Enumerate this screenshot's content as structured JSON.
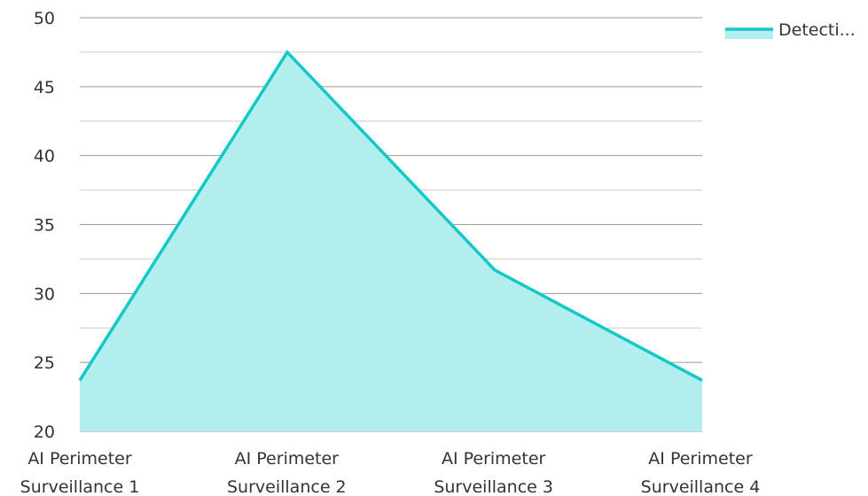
{
  "chart_data": {
    "type": "area",
    "categories": [
      [
        "AI Perimeter",
        "Surveillance 1"
      ],
      [
        "AI Perimeter",
        "Surveillance 2"
      ],
      [
        "AI Perimeter",
        "Surveillance 3"
      ],
      [
        "AI Perimeter",
        "Surveillance 4"
      ]
    ],
    "series": [
      {
        "name": "Detecti...",
        "values": [
          23.7,
          47.5,
          31.7,
          23.7
        ]
      }
    ],
    "ylim": [
      20,
      50
    ],
    "yticks": [
      "20",
      "25",
      "30",
      "35",
      "40",
      "45",
      "50"
    ],
    "grid": true,
    "legend_position": "top-right",
    "colors": {
      "line": "#14c8c8",
      "fill": "#b2eeee",
      "grid": "#cccccc",
      "axis": "#999999"
    }
  }
}
